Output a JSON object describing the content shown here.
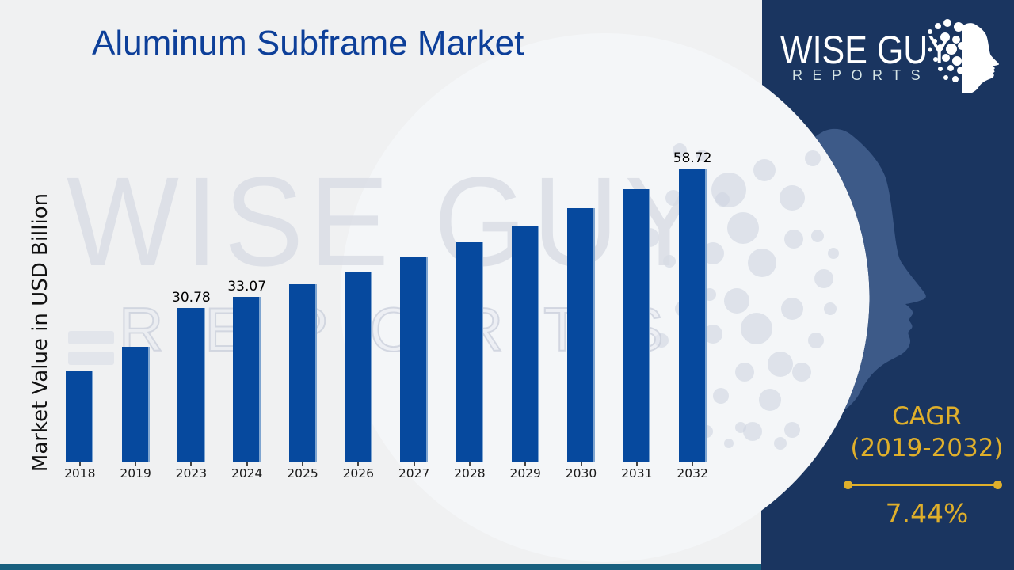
{
  "page": {
    "title": "Aluminum Subframe Market",
    "background": "#f0f1f2"
  },
  "logo": {
    "brand": "WISE GUY",
    "sub": "REPORTS"
  },
  "watermark": {
    "line1": "WISE GUY",
    "line2": "REPORTS"
  },
  "cagr": {
    "label": "CAGR",
    "period": "(2019-2032)",
    "value": "7.44%"
  },
  "chart_data": {
    "type": "bar",
    "title": "Aluminum Subframe Market",
    "xlabel": "",
    "ylabel": "Market Value in USD Billion",
    "unit": "USD Billion",
    "categories": [
      "2018",
      "2019",
      "2023",
      "2024",
      "2025",
      "2026",
      "2027",
      "2028",
      "2029",
      "2030",
      "2031",
      "2032"
    ],
    "values": [
      18.05,
      23.08,
      30.78,
      33.07,
      35.53,
      38.17,
      41.01,
      44.06,
      47.34,
      50.86,
      54.65,
      58.72
    ],
    "data_labels": {
      "2023": "30.78",
      "2024": "33.07",
      "2032": "58.72"
    },
    "ylim": [
      0,
      62
    ],
    "grid": false,
    "bar_color": "#06499e",
    "cagr_percent": 7.44,
    "cagr_period": "2019-2032"
  },
  "colors": {
    "navy_panel": "#1a3560",
    "face_silhouette": "#3d5a88",
    "notch_fill": "#f4f6f8",
    "bar": "#06499e",
    "accent_gold": "#dfaf2b",
    "bottom_strip": "#19607f",
    "title_blue": "#0d3f99",
    "watermark_gray": "#d9dde5"
  }
}
